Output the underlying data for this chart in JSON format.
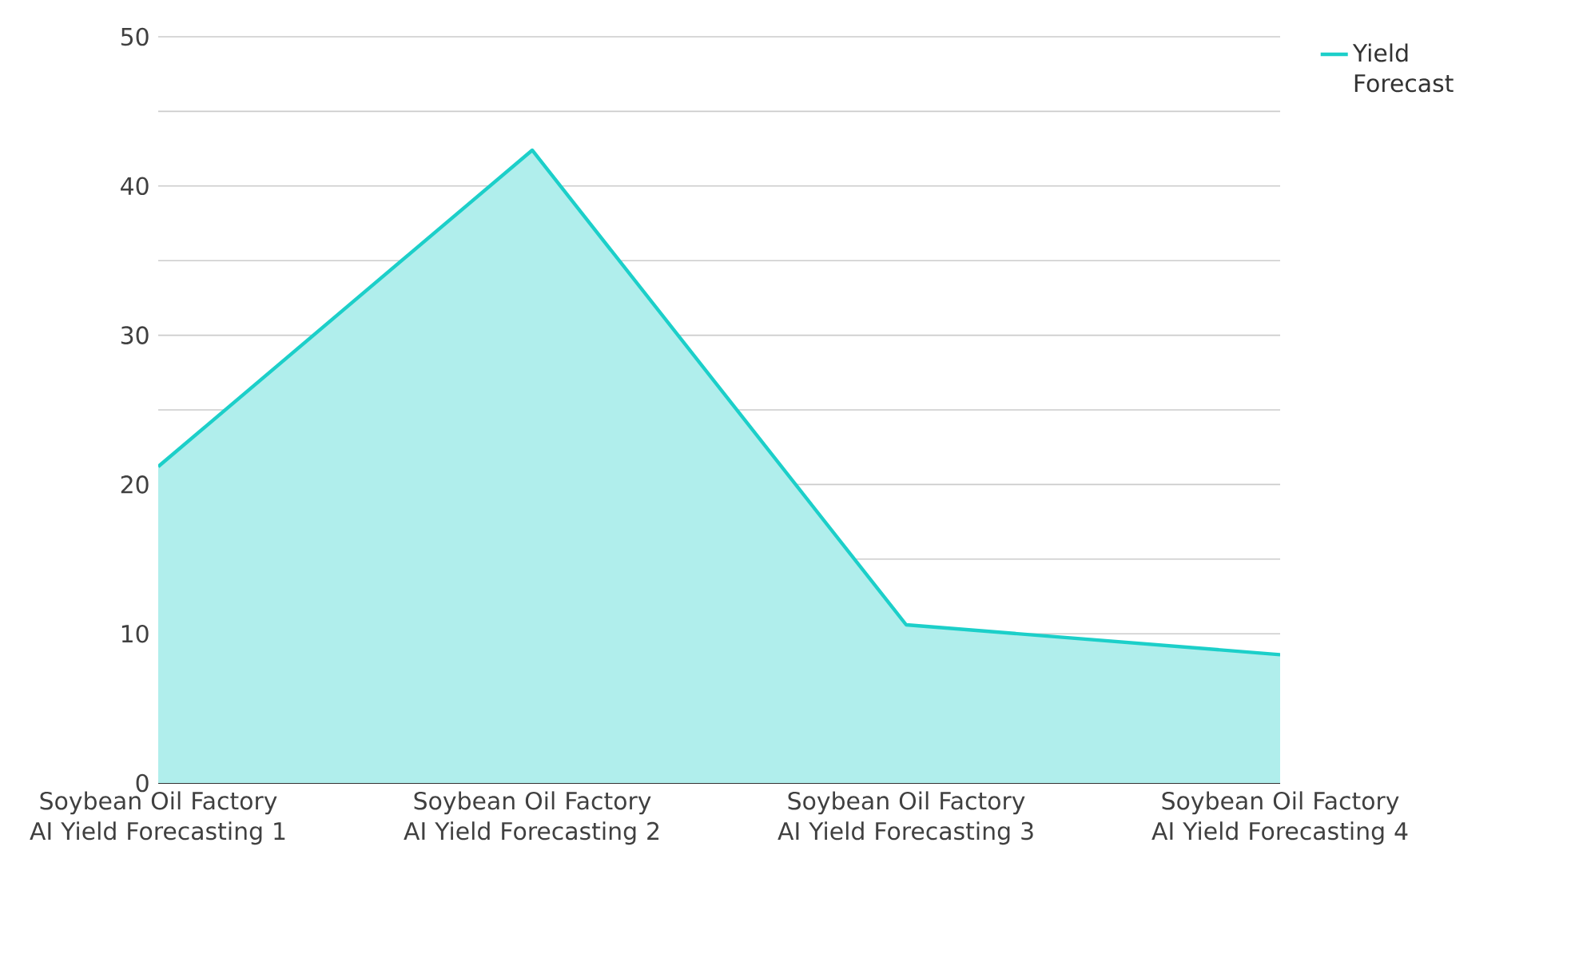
{
  "chart_data": {
    "type": "area",
    "categories": [
      "Soybean Oil Factory AI Yield Forecasting 1",
      "Soybean Oil Factory AI Yield Forecasting 2",
      "Soybean Oil Factory AI Yield Forecasting 3",
      "Soybean Oil Factory AI Yield Forecasting 4"
    ],
    "series": [
      {
        "name": "Yield Forecast",
        "color": "#1ccfc9",
        "values": [
          21.2,
          42.4,
          10.6,
          8.6
        ]
      }
    ],
    "ylim": [
      0,
      50
    ],
    "yticks": [
      0,
      {
        "value": 5,
        "label": null
      },
      10,
      {
        "value": 15,
        "label": null
      },
      20,
      {
        "value": 25,
        "label": null
      },
      30,
      {
        "value": 35,
        "label": null
      },
      40,
      {
        "value": 45,
        "label": null
      },
      50
    ],
    "grid": "y",
    "legend": "top right"
  }
}
